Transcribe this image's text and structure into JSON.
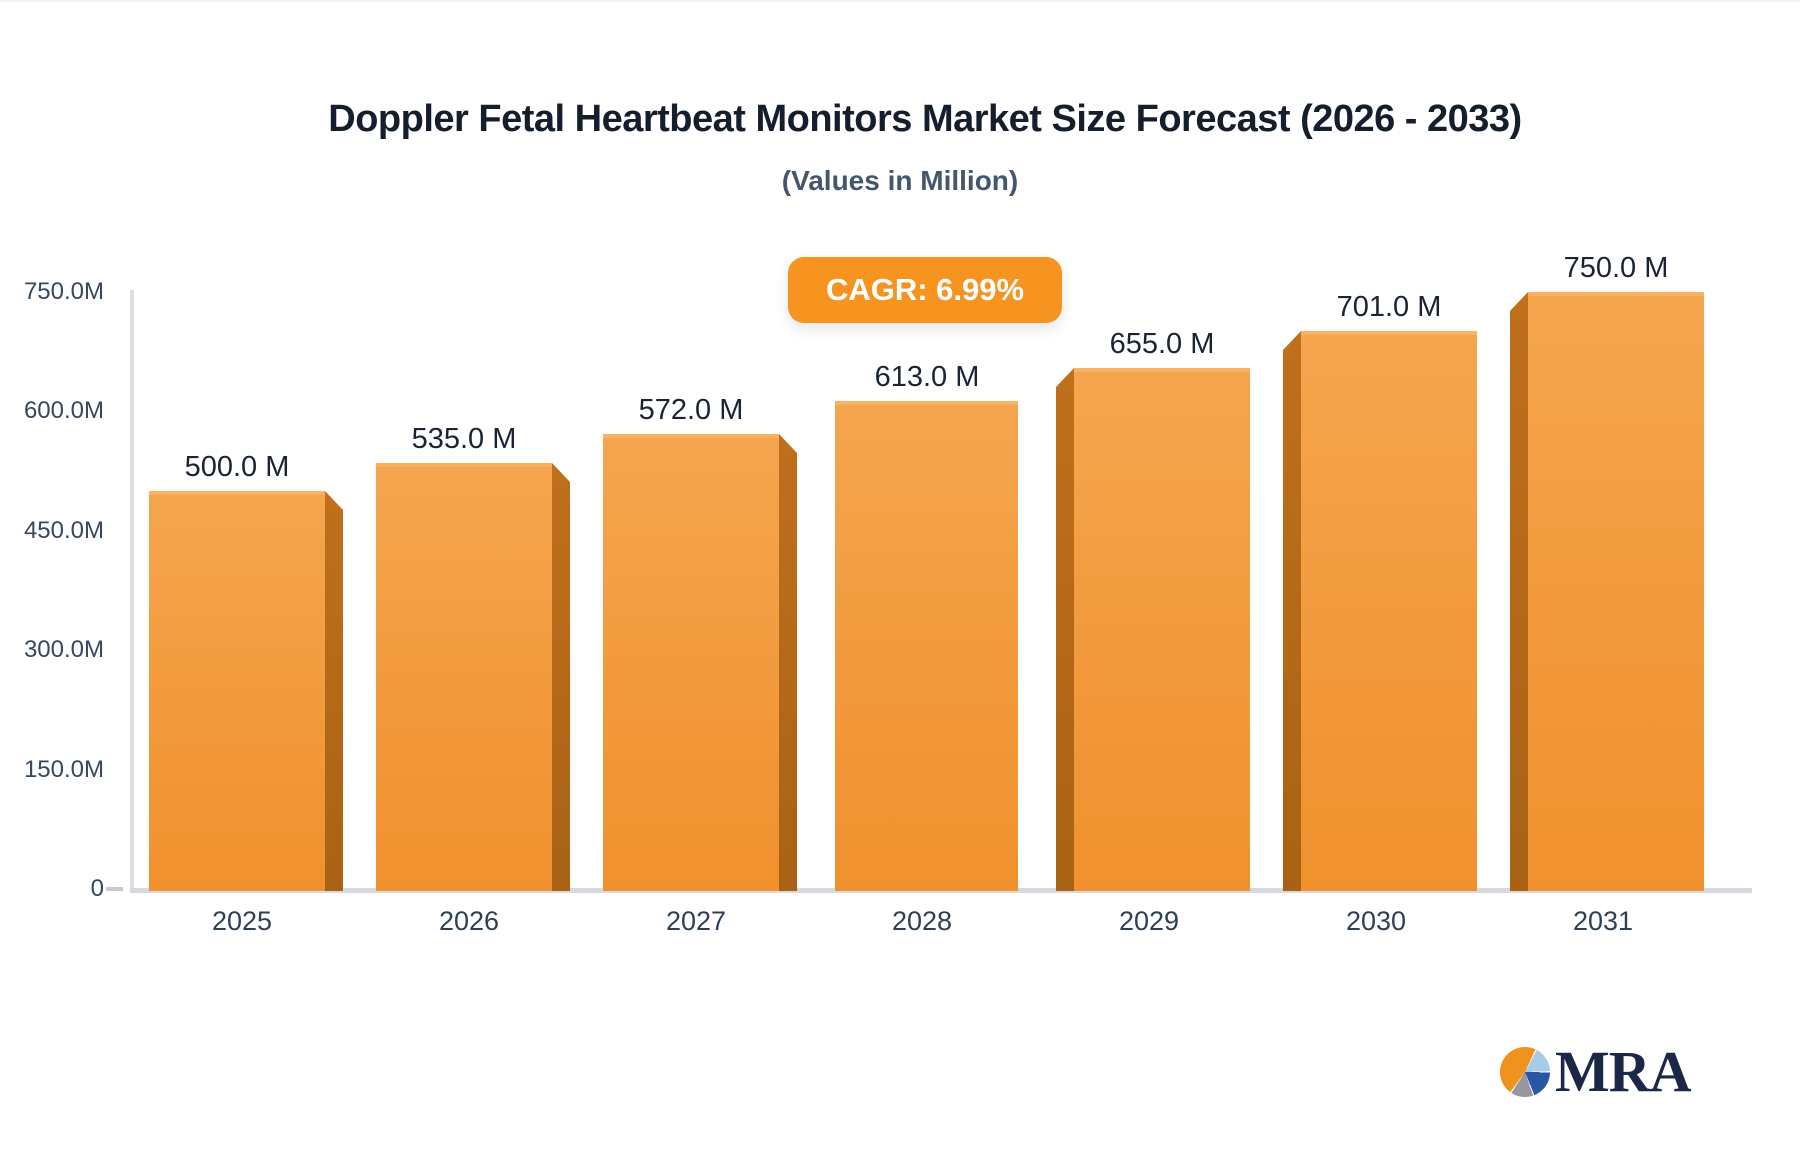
{
  "header": {
    "title": "Doppler Fetal Heartbeat Monitors Market Size Forecast (2026 - 2033)",
    "subtitle": "(Values in Million)"
  },
  "badge": {
    "label": "CAGR: 6.99%",
    "background": "#F7941F",
    "text_color": "#FFFFFF"
  },
  "chart_data": {
    "type": "bar",
    "title": "Doppler Fetal Heartbeat Monitors Market Size Forecast (2026 - 2033)",
    "subtitle": "(Values in Million)",
    "categories": [
      "2025",
      "2026",
      "2027",
      "2028",
      "2029",
      "2030",
      "2031"
    ],
    "values": [
      500.0,
      535.0,
      572.0,
      613.0,
      655.0,
      701.0,
      750.0
    ],
    "value_labels": [
      "500.0 M",
      "535.0 M",
      "572.0 M",
      "613.0 M",
      "655.0 M",
      "701.0 M",
      "750.0 M"
    ],
    "y_ticks": [
      {
        "value": 750,
        "label": "750.0M"
      },
      {
        "value": 600,
        "label": "600.0M"
      },
      {
        "value": 450,
        "label": "450.0M"
      },
      {
        "value": 300,
        "label": "300.0M"
      },
      {
        "value": 150,
        "label": "150.0M"
      },
      {
        "value": 0,
        "label": "0"
      }
    ],
    "ylim": [
      0,
      750
    ],
    "xlabel": "",
    "ylabel": "",
    "grid": false,
    "legend": "none",
    "annotation": "CAGR: 6.99%",
    "bar_style": "3d-beveled-columns",
    "colors": {
      "bar_face_top": "#F5A54E",
      "bar_face_bottom": "#F0912D",
      "bar_bevel": "#B06A1A",
      "bar_top_edge": "#F7B266",
      "axis_line": "#D9DDE2",
      "tick_text": "#36485E",
      "value_text": "#1A2433",
      "badge_orange": "#F7941F"
    }
  },
  "logo": {
    "text": "MRA",
    "text_color": "#1B2747",
    "pie_colors": {
      "orange": "#F0921E",
      "light_blue": "#A6CCE8",
      "blue": "#2A57A5",
      "gray": "#97979D"
    }
  }
}
